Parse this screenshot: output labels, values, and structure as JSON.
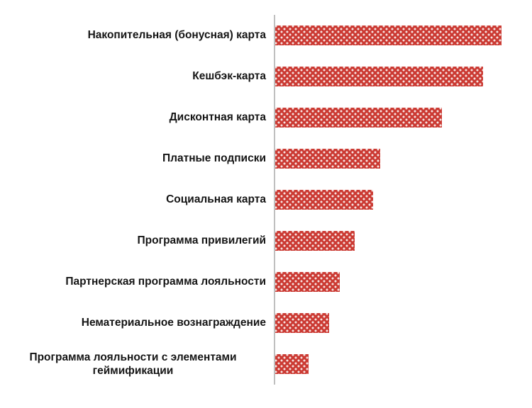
{
  "chart_data": {
    "type": "bar",
    "orientation": "horizontal",
    "title": "",
    "xlabel": "",
    "ylabel": "",
    "grid": "off",
    "legend": "none",
    "xlim": [
      0,
      100
    ],
    "categories": [
      "Накопительная (бонусная) карта",
      "Кешбэк-карта",
      "Дисконтная карта",
      "Платные подписки",
      "Социальная карта",
      "Программа привилегий",
      "Партнерская программа лояльности",
      "Нематериальное вознаграждение",
      "Программа лояльности с элементами геймификации"
    ],
    "values": [
      88,
      81,
      65,
      41,
      38,
      31,
      25,
      21,
      13
    ],
    "bar_color": "#cb3a33",
    "bar_pattern": "white-dots",
    "axis_color": "#bfbfbf",
    "label_color": "#151515"
  }
}
